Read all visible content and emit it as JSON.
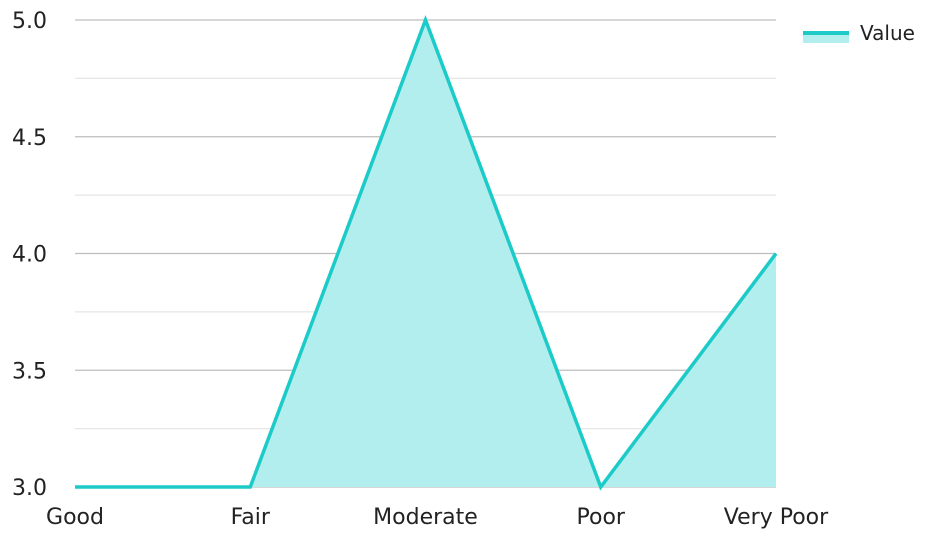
{
  "chart_data": {
    "type": "area",
    "categories": [
      "Good",
      "Fair",
      "Moderate",
      "Poor",
      "Very Poor"
    ],
    "series": [
      {
        "name": "Value",
        "values": [
          3.0,
          3.0,
          5.0,
          3.0,
          4.0
        ]
      }
    ],
    "ylim": [
      3.0,
      5.0
    ],
    "y_ticks": [
      "3.0",
      "3.5",
      "4.0",
      "4.5",
      "5.0"
    ],
    "grid": true,
    "legend_position": "top-right",
    "colors": {
      "line": "#1ccbc8",
      "fill": "#b2eeed",
      "grid_major": "#bdbdbd",
      "grid_minor": "#e6e6e6"
    }
  }
}
